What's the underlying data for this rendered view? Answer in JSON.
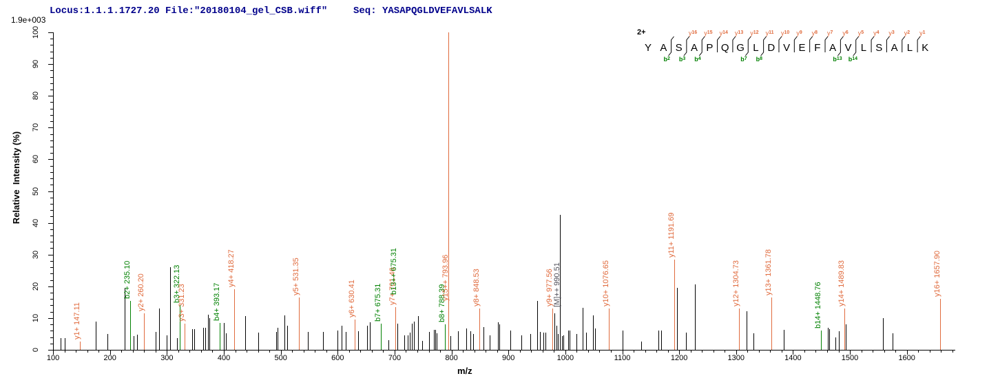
{
  "header": {
    "locus": "Locus:1.1.1.1727.20 File:\"20180104_gel_CSB.wiff\"",
    "seq": "Seq: YASAPQGLDVEFAVLSALK",
    "scale": "1.9e+003"
  },
  "axes": {
    "x_title": "m/z",
    "y_title": "Relative  Intensity (%)",
    "x_ticks": [
      100,
      200,
      300,
      400,
      500,
      600,
      700,
      800,
      900,
      1000,
      1100,
      1200,
      1300,
      1400,
      1500,
      1600
    ],
    "y_ticks": [
      0,
      10,
      20,
      30,
      40,
      50,
      60,
      70,
      80,
      90,
      100
    ]
  },
  "sequence": {
    "charge": "2+",
    "residues": [
      "Y",
      "A",
      "S",
      "A",
      "P",
      "Q",
      "G",
      "L",
      "D",
      "V",
      "E",
      "F",
      "A",
      "V",
      "L",
      "S",
      "A",
      "L",
      "K"
    ],
    "y_ions": [
      {
        "label": "y16",
        "after": 3
      },
      {
        "label": "y15",
        "after": 4
      },
      {
        "label": "y14",
        "after": 5
      },
      {
        "label": "y13",
        "after": 6
      },
      {
        "label": "y12",
        "after": 7
      },
      {
        "label": "y11",
        "after": 8
      },
      {
        "label": "y10",
        "after": 9
      },
      {
        "label": "y9",
        "after": 10
      },
      {
        "label": "y8",
        "after": 11
      },
      {
        "label": "y7",
        "after": 12
      },
      {
        "label": "y6",
        "after": 13
      },
      {
        "label": "y5",
        "after": 14
      },
      {
        "label": "y4",
        "after": 15
      },
      {
        "label": "y3",
        "after": 16
      },
      {
        "label": "y2",
        "after": 17
      },
      {
        "label": "y1",
        "after": 18
      }
    ],
    "b_ions": [
      {
        "label": "b2",
        "after": 2
      },
      {
        "label": "b3",
        "after": 3
      },
      {
        "label": "b4",
        "after": 4
      },
      {
        "label": "b7",
        "after": 7
      },
      {
        "label": "b8",
        "after": 8
      },
      {
        "label": "b13",
        "after": 13
      },
      {
        "label": "b14",
        "after": 14
      }
    ]
  },
  "colors": {
    "header": "#00008B",
    "charge": "#0000C8",
    "y_ion": "#E06A3C",
    "b_ion": "#008000",
    "precursor_label": "#50505A",
    "peak": "#000000"
  },
  "chart_data": {
    "type": "bar",
    "subtype": "ms2-spectrum",
    "xlabel": "m/z",
    "ylabel": "Relative Intensity (%)",
    "xlim": [
      100,
      1685
    ],
    "ylim": [
      0,
      100
    ],
    "intensity_scale": "1.9e+003",
    "peaks": [
      {
        "mz": 113,
        "i": 3.7
      },
      {
        "mz": 121,
        "i": 3.7
      },
      {
        "mz": 147.11,
        "i": 2.5,
        "ion": "y",
        "label": "y1+ 147.11"
      },
      {
        "mz": 175,
        "i": 9
      },
      {
        "mz": 196,
        "i": 5
      },
      {
        "mz": 226,
        "i": 19.5
      },
      {
        "mz": 235.1,
        "i": 15.5,
        "ion": "b",
        "label": "b2+ 235.10"
      },
      {
        "mz": 242,
        "i": 4.3
      },
      {
        "mz": 247,
        "i": 4.8
      },
      {
        "mz": 260.2,
        "i": 11.5,
        "ion": "y",
        "label": "y2+ 260.20"
      },
      {
        "mz": 280,
        "i": 5.6
      },
      {
        "mz": 286,
        "i": 13
      },
      {
        "mz": 300,
        "i": 4.6
      },
      {
        "mz": 306,
        "i": 26
      },
      {
        "mz": 318,
        "i": 3.7
      },
      {
        "mz": 322.13,
        "i": 14,
        "ion": "b",
        "label": "b3+ 322.13"
      },
      {
        "mz": 331.23,
        "i": 8.2,
        "ion": "y",
        "label": "y3+ 331.23"
      },
      {
        "mz": 344,
        "i": 6.5
      },
      {
        "mz": 348,
        "i": 6.5
      },
      {
        "mz": 364,
        "i": 7
      },
      {
        "mz": 367,
        "i": 7
      },
      {
        "mz": 372,
        "i": 11
      },
      {
        "mz": 375,
        "i": 10
      },
      {
        "mz": 393.17,
        "i": 8.5,
        "ion": "b",
        "label": "b4+ 393.17"
      },
      {
        "mz": 400,
        "i": 8.5
      },
      {
        "mz": 404,
        "i": 5.3
      },
      {
        "mz": 418.27,
        "i": 19,
        "ion": "y",
        "label": "y4+ 418.27"
      },
      {
        "mz": 438,
        "i": 10.6
      },
      {
        "mz": 461,
        "i": 5.4
      },
      {
        "mz": 492,
        "i": 5.7
      },
      {
        "mz": 494,
        "i": 7
      },
      {
        "mz": 507,
        "i": 10.8
      },
      {
        "mz": 511,
        "i": 7.5
      },
      {
        "mz": 531.35,
        "i": 16.5,
        "ion": "y",
        "label": "y5+ 531.35"
      },
      {
        "mz": 547,
        "i": 5.6
      },
      {
        "mz": 574,
        "i": 5.6
      },
      {
        "mz": 600,
        "i": 6
      },
      {
        "mz": 607,
        "i": 7.7
      },
      {
        "mz": 614,
        "i": 5.6
      },
      {
        "mz": 630.41,
        "i": 9.5,
        "ion": "y",
        "label": "y6+ 630.41"
      },
      {
        "mz": 636,
        "i": 5.9
      },
      {
        "mz": 652,
        "i": 7.5
      },
      {
        "mz": 656,
        "i": 8.6
      },
      {
        "mz": 675.31,
        "i": 8.2,
        "ion": "b",
        "label": "b7+ 675.31"
      },
      {
        "mz": 689,
        "i": 3
      },
      {
        "mz": 701.46,
        "i": 13.4,
        "ion": "y",
        "label": "y7+ 701.46"
      },
      {
        "mz": 705,
        "i": 8.2
      },
      {
        "mz": 717,
        "i": 4.5
      },
      {
        "mz": 723,
        "i": 4.5
      },
      {
        "mz": 727,
        "i": 5.4
      },
      {
        "mz": 730,
        "i": 8.2
      },
      {
        "mz": 734,
        "i": 9
      },
      {
        "mz": 741,
        "i": 10.6
      },
      {
        "mz": 748,
        "i": 2.8
      },
      {
        "mz": 761,
        "i": 5.6
      },
      {
        "mz": 769,
        "i": 6.3
      },
      {
        "mz": 771,
        "i": 6.3
      },
      {
        "mz": 774,
        "i": 5.2
      },
      {
        "mz": 788.39,
        "i": 8,
        "ion": "b",
        "label": "b8+ 788.39"
      },
      {
        "mz": 793.96,
        "i": 100,
        "ion": "y",
        "label": "y15++ 793.96",
        "lb": 437
      },
      {
        "mz": 798,
        "i": 4.4
      },
      {
        "mz": 811,
        "i": 5.8
      },
      {
        "mz": 826,
        "i": 6.8
      },
      {
        "mz": 833,
        "i": 5.9
      },
      {
        "mz": 838,
        "i": 5
      },
      {
        "mz": 848.53,
        "i": 13,
        "ion": "y",
        "label": "y8+ 848.53"
      },
      {
        "mz": 856,
        "i": 7.2
      },
      {
        "mz": 867,
        "i": 4.6
      },
      {
        "mz": 881,
        "i": 8.6
      },
      {
        "mz": 884,
        "i": 8
      },
      {
        "mz": 903,
        "i": 6.1
      },
      {
        "mz": 923,
        "i": 4.6
      },
      {
        "mz": 938,
        "i": 5
      },
      {
        "mz": 951,
        "i": 15.4
      },
      {
        "mz": 956,
        "i": 5.6
      },
      {
        "mz": 962,
        "i": 5.4
      },
      {
        "mz": 965,
        "i": 5.4
      },
      {
        "mz": 977.56,
        "i": 13,
        "ion": "y",
        "label": "y9+ 977.56"
      },
      {
        "mz": 981,
        "i": 11.6
      },
      {
        "mz": 984,
        "i": 7.5
      },
      {
        "mz": 987,
        "i": 5
      },
      {
        "mz": 990.51,
        "i": 42.5,
        "ion": "M",
        "label": "[M]++ 990.51",
        "lb": 446
      },
      {
        "mz": 994,
        "i": 4.3
      },
      {
        "mz": 997,
        "i": 4.6
      },
      {
        "mz": 1005,
        "i": 6.1
      },
      {
        "mz": 1008,
        "i": 6.1
      },
      {
        "mz": 1019,
        "i": 5
      },
      {
        "mz": 1031,
        "i": 13.3
      },
      {
        "mz": 1036,
        "i": 5.4
      },
      {
        "mz": 1049,
        "i": 10.8
      },
      {
        "mz": 1052,
        "i": 6.8
      },
      {
        "mz": 1076.65,
        "i": 13,
        "ion": "y",
        "label": "y10+ 1076.65"
      },
      {
        "mz": 1100,
        "i": 6.1
      },
      {
        "mz": 1133,
        "i": 2.5
      },
      {
        "mz": 1163,
        "i": 6.1
      },
      {
        "mz": 1168,
        "i": 6.1
      },
      {
        "mz": 1191.69,
        "i": 28.5,
        "ion": "y",
        "label": "y11+ 1191.69"
      },
      {
        "mz": 1196,
        "i": 19.5
      },
      {
        "mz": 1212,
        "i": 5.5
      },
      {
        "mz": 1228,
        "i": 20.5
      },
      {
        "mz": 1304.73,
        "i": 13,
        "ion": "y",
        "label": "y12+ 1304.73"
      },
      {
        "mz": 1318,
        "i": 12.1
      },
      {
        "mz": 1331,
        "i": 5.2
      },
      {
        "mz": 1361.78,
        "i": 16.5,
        "ion": "y",
        "label": "y13+ 1361.78"
      },
      {
        "mz": 1384,
        "i": 6.3
      },
      {
        "mz": 1448.76,
        "i": 6,
        "ion": "b",
        "label": "b14+ 1448.76"
      },
      {
        "mz": 1461,
        "i": 7
      },
      {
        "mz": 1464,
        "i": 6.5
      },
      {
        "mz": 1474,
        "i": 3.9
      },
      {
        "mz": 1480,
        "i": 5.9
      },
      {
        "mz": 1489.83,
        "i": 13,
        "ion": "y",
        "label": "y14+ 1489.83"
      },
      {
        "mz": 1493,
        "i": 8
      },
      {
        "mz": 1558,
        "i": 10
      },
      {
        "mz": 1575,
        "i": 5.2
      },
      {
        "mz": 1657.9,
        "i": 16,
        "ion": "y",
        "label": "y16+ 1657.90"
      }
    ],
    "extra_labels": [
      {
        "text": "b13++ 675.31",
        "mz": 675.31,
        "dx": 13,
        "bottom": 428,
        "ion": "b"
      }
    ]
  }
}
